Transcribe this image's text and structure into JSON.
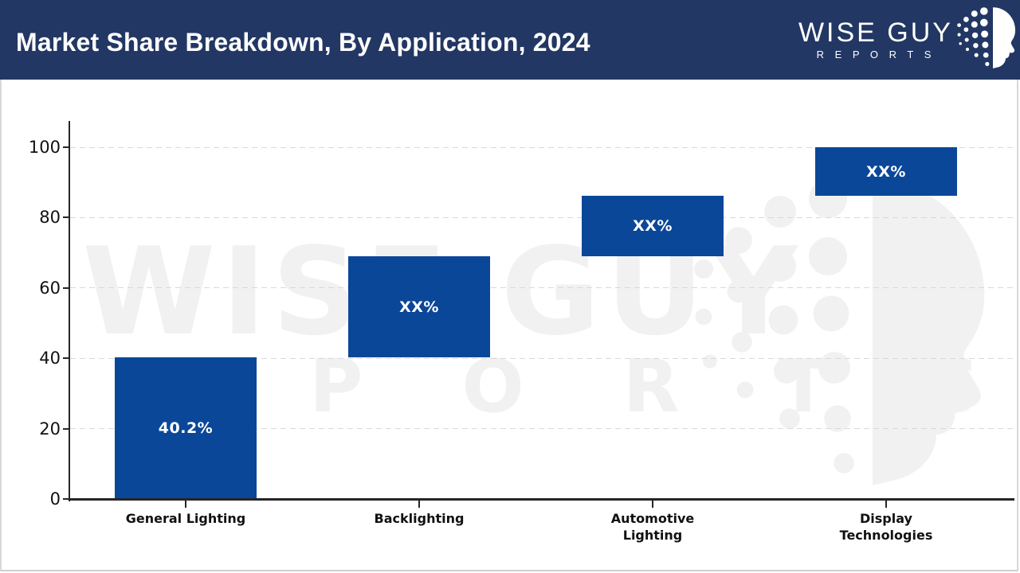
{
  "header": {
    "title": "Market Share Breakdown, By Application, 2024",
    "logo": {
      "brand": "WISE GUY",
      "sub": "R E P O R T S"
    }
  },
  "watermark": {
    "line1": "WISE GUY",
    "line2": "P O R T S"
  },
  "chart_data": {
    "type": "bar",
    "subtype": "waterfall",
    "title": "Market Share Breakdown, By Application, 2024",
    "xlabel": "",
    "ylabel": "",
    "categories": [
      "General Lighting",
      "Backlighting",
      "Automotive\nLighting",
      "Display\nTechnologies"
    ],
    "segments": [
      {
        "category": "General Lighting",
        "label": "40.2%",
        "start": 0,
        "end": 40.2
      },
      {
        "category": "Backlighting",
        "label": "XX%",
        "start": 40.2,
        "end": 68.9
      },
      {
        "category": "Automotive Lighting",
        "label": "XX%",
        "start": 68.9,
        "end": 86.1
      },
      {
        "category": "Display Technologies",
        "label": "XX%",
        "start": 86.1,
        "end": 100
      }
    ],
    "yticks": [
      0,
      20,
      40,
      60,
      80,
      100
    ],
    "ylim": [
      0,
      107
    ],
    "grid": "horizontal-dashed",
    "legend": "none",
    "bar_color": "#0b4798",
    "bar_label_color": "#ffffff"
  },
  "style": {
    "header_bg": "#223763",
    "title_color": "#ffffff",
    "axis_color": "#262626",
    "grid_color": "#d9d9d9",
    "tick_label_color": "#111111",
    "watermark_color": "#f1f1f1",
    "page_border": "#d8d8d8"
  }
}
